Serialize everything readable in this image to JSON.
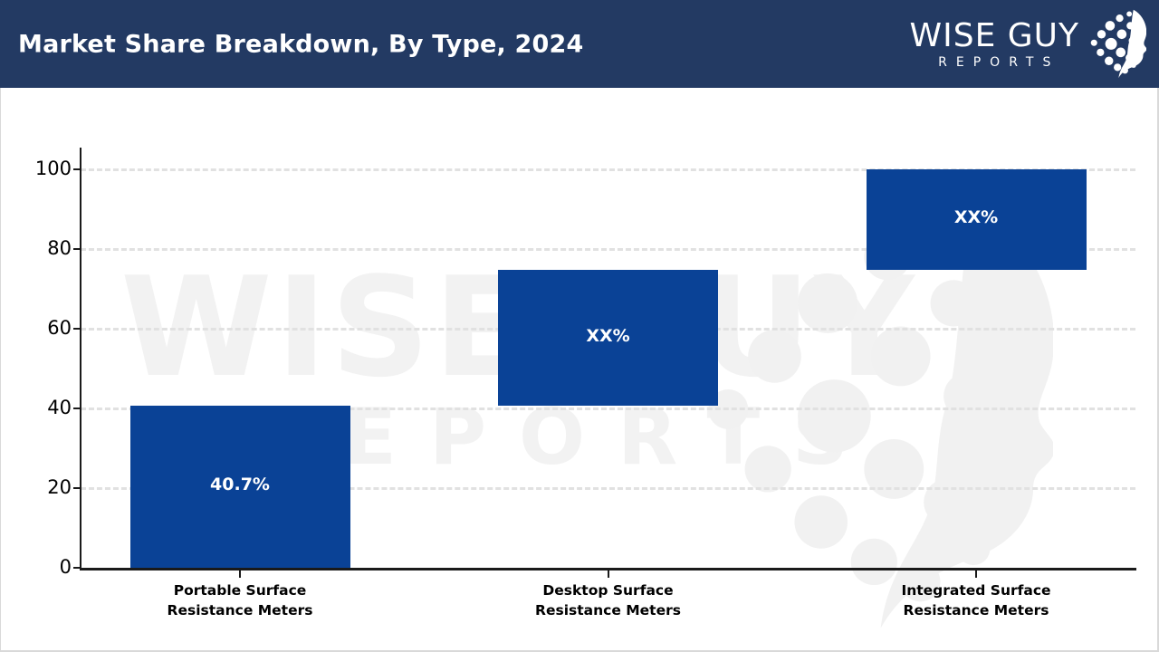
{
  "header": {
    "title": "Market Share Breakdown, By Type, 2024",
    "bg_color": "#233A63",
    "logo": {
      "line1": "WISE GUY",
      "line2": "REPORTS"
    }
  },
  "watermark": {
    "line1": "WISE GUY",
    "line2": "REPORTS"
  },
  "chart_data": {
    "type": "bar",
    "subtype": "waterfall",
    "title": "Market Share Breakdown, By Type, 2024",
    "categories": [
      "Portable Surface Resistance Meters",
      "Desktop Surface Resistance Meters",
      "Integrated Surface Resistance Meters"
    ],
    "bars": [
      {
        "category": "Portable Surface\nResistance Meters",
        "start": 0,
        "end": 40.7,
        "label": "40.7%"
      },
      {
        "category": "Desktop Surface\nResistance Meters",
        "start": 40.7,
        "end": 74.8,
        "label": "XX%"
      },
      {
        "category": "Integrated Surface\nResistance Meters",
        "start": 74.8,
        "end": 100,
        "label": "XX%"
      }
    ],
    "ylim": [
      0,
      100
    ],
    "yticks": [
      0,
      20,
      40,
      60,
      80,
      100
    ],
    "xlabel": "",
    "ylabel": "",
    "legend": null,
    "grid": "horizontal-dashed",
    "bar_color": "#0A4296",
    "value_label_color": "#ffffff",
    "grid_color": "#e1e1e1",
    "axis_color": "#1a1a1a"
  }
}
